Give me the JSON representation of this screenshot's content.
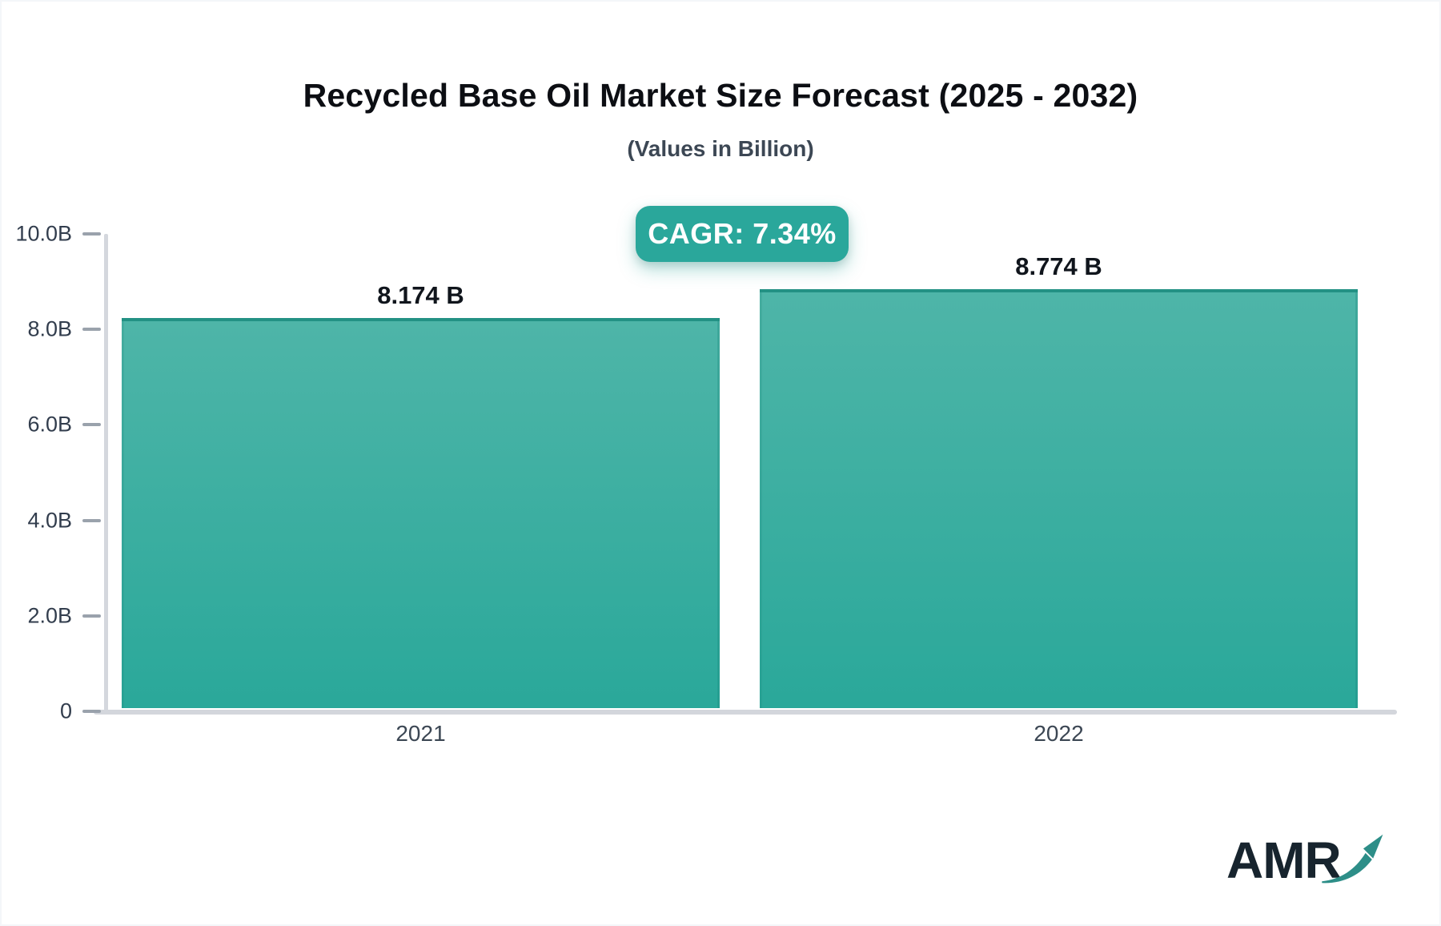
{
  "title": "Recycled Base Oil Market Size Forecast (2025 - 2032)",
  "subtitle": "(Values in Billion)",
  "cagr_badge": "CAGR: 7.34%",
  "logo": {
    "text": "AMR"
  },
  "colors": {
    "bar_top": "#4eb5a8",
    "bar_bottom": "#2aa89a",
    "bar_border": "#239184",
    "badge_bg": "#2aa79b",
    "axis_line": "#d4d7dd",
    "tick_dash": "#9aa2ac",
    "arrow": "#2d8e88",
    "logo_text": "#17242e"
  },
  "chart_data": {
    "type": "bar",
    "title": "Recycled Base Oil Market Size Forecast (2025 - 2032)",
    "subtitle": "(Values in Billion)",
    "categories": [
      "2021",
      "2022"
    ],
    "values": [
      8.174,
      8.774
    ],
    "value_labels": [
      "8.174 B",
      "8.774 B"
    ],
    "ylim": [
      0,
      10
    ],
    "y_ticks": [
      {
        "label": "10.0B",
        "value": 10
      },
      {
        "label": "8.0B",
        "value": 8
      },
      {
        "label": "6.0B",
        "value": 6
      },
      {
        "label": "4.0B",
        "value": 4
      },
      {
        "label": "2.0B",
        "value": 2
      },
      {
        "label": "0",
        "value": 0
      }
    ],
    "annotations": [
      "CAGR: 7.34%"
    ],
    "grid": false,
    "legend_position": "none"
  }
}
